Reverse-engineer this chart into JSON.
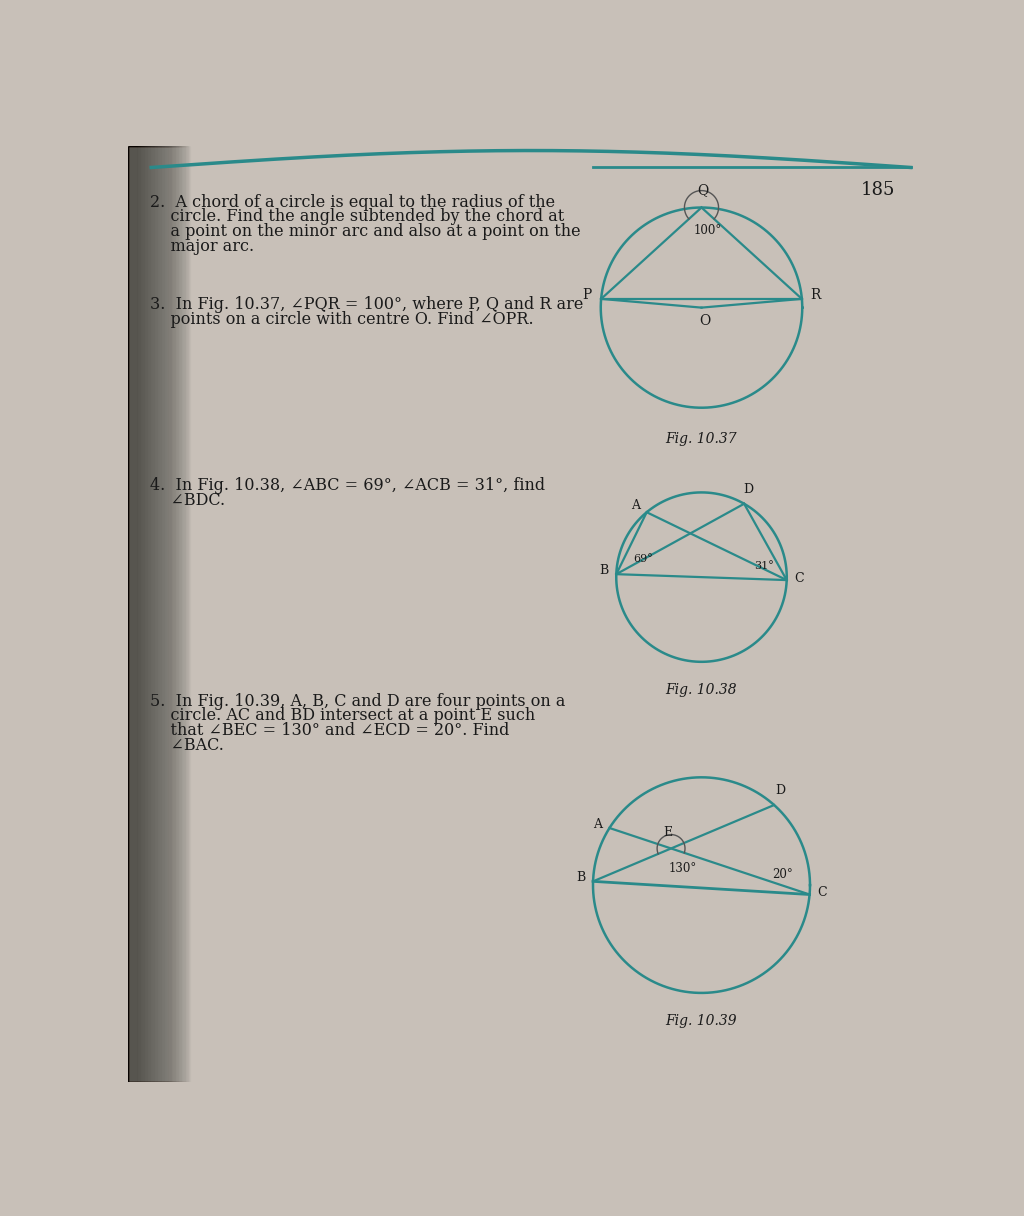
{
  "bg_color": "#c8c0b8",
  "text_color": "#1a1a1a",
  "line_color": "#2a8a8a",
  "page_number": "185",
  "q2_lines": [
    "2.  A chord of a circle is equal to the radius of the",
    "    circle. Find the angle subtended by the chord at",
    "    a point on the minor arc and also at a point on the",
    "    major arc."
  ],
  "q3_lines": [
    "3.  In Fig. 10.37, ∠PQR = 100°, where P, Q and R are",
    "    points on a circle with centre O. Find ∠OPR."
  ],
  "q4_lines": [
    "4.  In Fig. 10.38, ∠ABC = 69°, ∠ACB = 31°, find",
    "    ∠BDC."
  ],
  "q5_lines": [
    "5.  In Fig. 10.39, A, B, C and D are four points on a",
    "    circle. AC and BD intersect at a point E such",
    "    that ∠BEC = 130° and ∠ECD = 20°. Find",
    "    ∠BAC."
  ],
  "fig1037_label": "Fig. 10.37",
  "fig1038_label": "Fig. 10.38",
  "fig1039_label": "Fig. 10.39",
  "curve_color": "#2a8a8a",
  "angle_color": "#555555"
}
